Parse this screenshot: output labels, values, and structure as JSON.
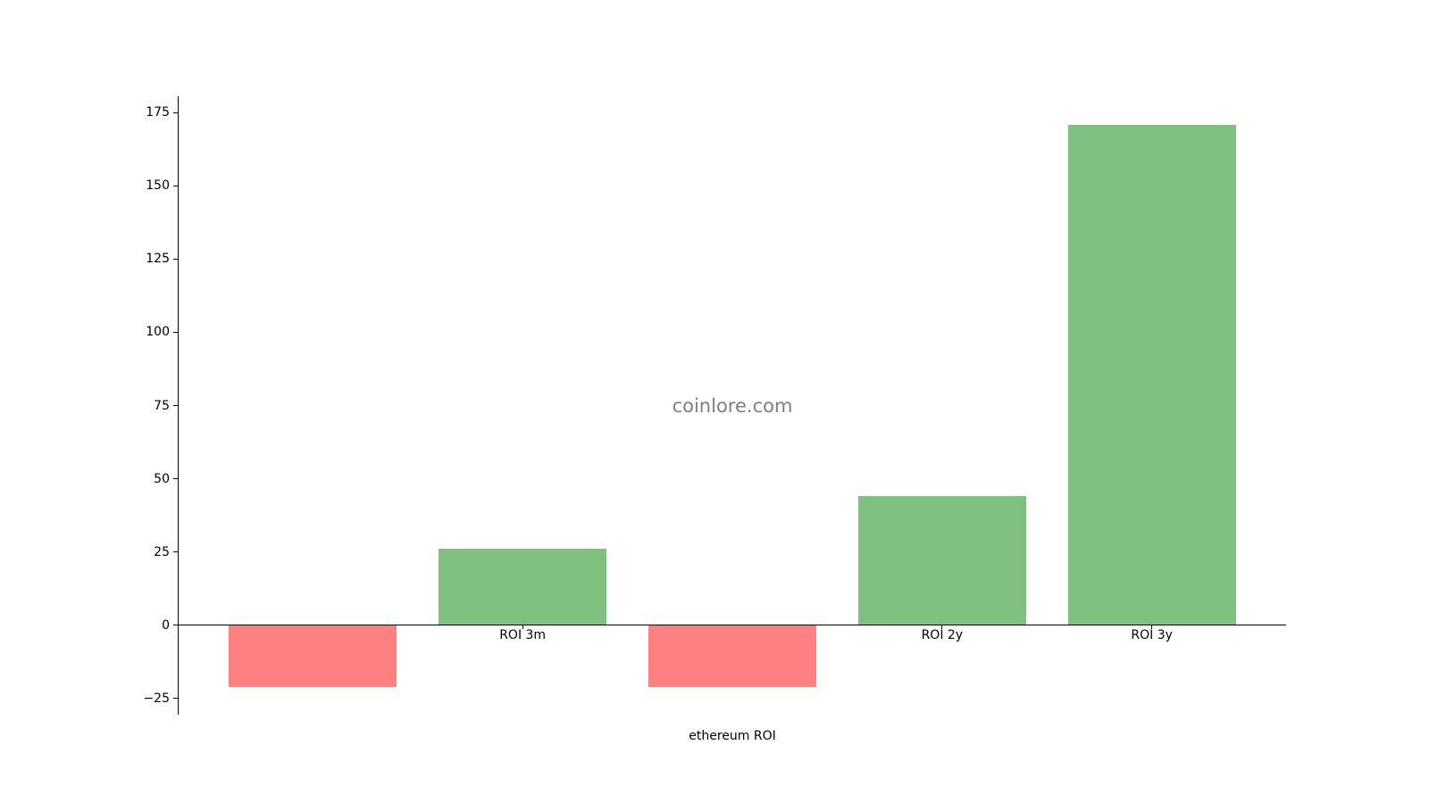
{
  "page": {
    "background": "#ffffff"
  },
  "chart_data": {
    "type": "bar",
    "watermark": "coinlore.com",
    "xlabel": "ethereum ROI",
    "categories": [
      "",
      "ROI 3m",
      "",
      "ROI 2y",
      "ROI 3y"
    ],
    "values": [
      -21,
      26,
      -21,
      44,
      171
    ],
    "bar_color_keys": [
      "negative",
      "positive",
      "negative",
      "positive",
      "positive"
    ],
    "colors": {
      "negative": "#ff8080",
      "positive": "#80c080",
      "axis": "#000000",
      "watermark": "#7f7f7f"
    },
    "yticks": [
      -25,
      0,
      25,
      50,
      75,
      100,
      125,
      150,
      175
    ],
    "ylim": [
      -30.6,
      180.6
    ],
    "xlim": [
      -0.64,
      4.64
    ],
    "bar_width": 0.8,
    "legend": "none",
    "grid": false
  }
}
